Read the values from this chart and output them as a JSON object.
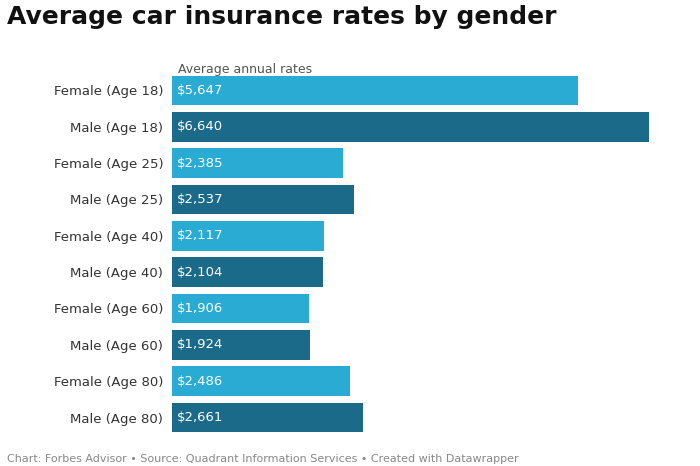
{
  "title": "Average car insurance rates by gender",
  "subtitle": "Average annual rates",
  "categories": [
    "Female (Age 18)",
    "Male (Age 18)",
    "Female (Age 25)",
    "Male (Age 25)",
    "Female (Age 40)",
    "Male (Age 40)",
    "Female (Age 60)",
    "Male (Age 60)",
    "Female (Age 80)",
    "Male (Age 80)"
  ],
  "values": [
    5647,
    6640,
    2385,
    2537,
    2117,
    2104,
    1906,
    1924,
    2486,
    2661
  ],
  "labels": [
    "$5,647",
    "$6,640",
    "$2,385",
    "$2,537",
    "$2,117",
    "$2,104",
    "$1,906",
    "$1,924",
    "$2,486",
    "$2,661"
  ],
  "bar_colors": [
    "#29ABD4",
    "#1B6A8A",
    "#29ABD4",
    "#1B6A8A",
    "#29ABD4",
    "#1B6A8A",
    "#29ABD4",
    "#1B6A8A",
    "#29ABD4",
    "#1B6A8A"
  ],
  "background_color": "#ffffff",
  "title_fontsize": 18,
  "subtitle_fontsize": 9,
  "label_fontsize": 9.5,
  "tick_fontsize": 9.5,
  "footer_text": "Chart: Forbes Advisor • Source: Quadrant Information Services • Created with Datawrapper",
  "footer_fontsize": 8,
  "xlim": [
    0,
    7200
  ],
  "bar_height": 0.82
}
